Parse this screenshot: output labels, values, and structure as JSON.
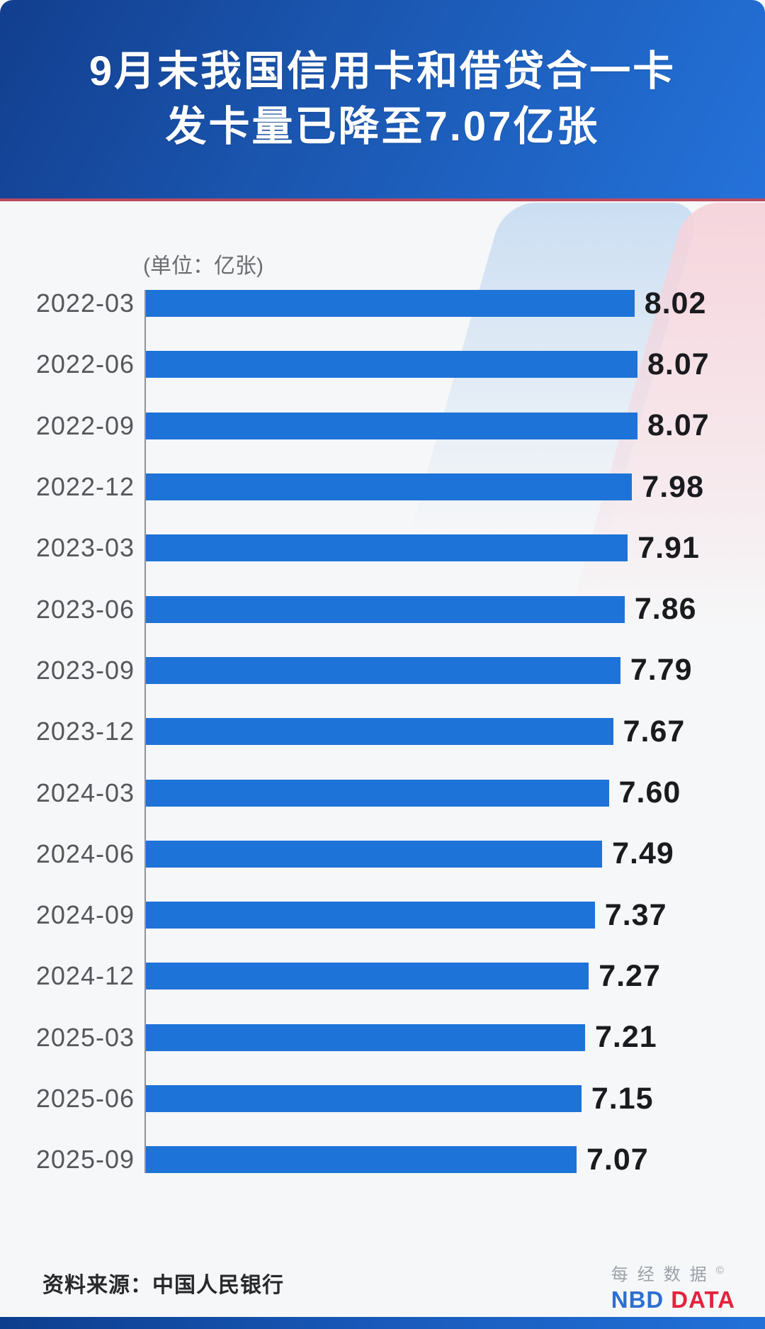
{
  "header": {
    "title_line1": "9月末我国信用卡和借贷合一卡",
    "title_line2": "发卡量已降至7.07亿张"
  },
  "chart_data": {
    "type": "bar",
    "orientation": "horizontal",
    "unit_label": "(单位：亿张)",
    "categories": [
      "2022-03",
      "2022-06",
      "2022-09",
      "2022-12",
      "2023-03",
      "2023-06",
      "2023-09",
      "2023-12",
      "2024-03",
      "2024-06",
      "2024-09",
      "2024-12",
      "2025-03",
      "2025-06",
      "2025-09"
    ],
    "values": [
      8.02,
      8.07,
      8.07,
      7.98,
      7.91,
      7.86,
      7.79,
      7.67,
      7.6,
      7.49,
      7.37,
      7.27,
      7.21,
      7.15,
      7.07
    ],
    "value_decimals": 2,
    "xlim": [
      0,
      8.07
    ],
    "bar_color": "#1e73d8",
    "grid": false,
    "legend": false
  },
  "footer": {
    "source": "资料来源：中国人民银行",
    "logo": {
      "cn": "每经数据",
      "copyright": "©",
      "nbd": "NBD",
      "data": "DATA"
    }
  },
  "colors": {
    "banner_gradient_start": "#123e8e",
    "banner_gradient_end": "#2472da",
    "divider_red": "#bd4a5e",
    "background": "#f6f7f8",
    "bar_blue": "#1e73d8",
    "category_label": "#56575c",
    "value_label": "#1a1b1e",
    "decor_blue": "#c9ddf2",
    "decor_pink": "#f6d3db"
  }
}
